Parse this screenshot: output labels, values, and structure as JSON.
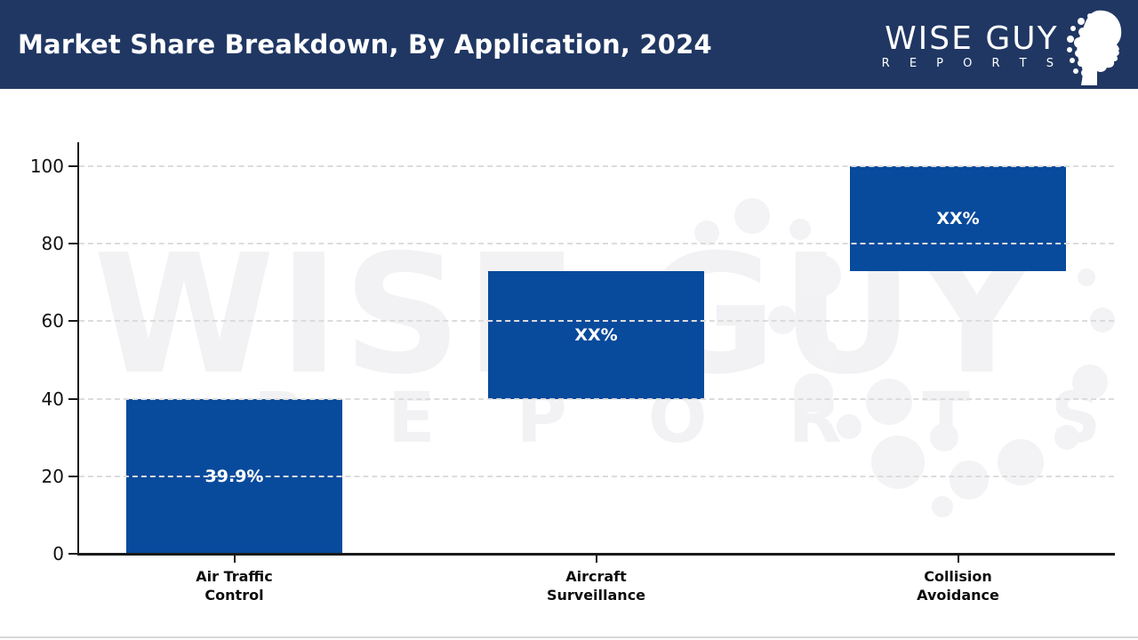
{
  "header": {
    "title": "Market Share Breakdown, By Application, 2024",
    "logo": {
      "line1": "WISE GUY",
      "line2": "R E P O R T S"
    }
  },
  "watermark": {
    "line1": "WISE GUY",
    "line2": "R E P O R T S"
  },
  "chart_data": {
    "type": "bar",
    "variant": "floating-segment-breakdown",
    "title": "Market Share Breakdown, By Application, 2024",
    "categories": [
      "Air Traffic Control",
      "Aircraft Surveillance",
      "Collision Avoidance"
    ],
    "category_lines": [
      [
        "Air Traffic",
        "Control"
      ],
      [
        "Aircraft",
        "Surveillance"
      ],
      [
        "Collision",
        "Avoidance"
      ]
    ],
    "segments": [
      {
        "category": "Air Traffic Control",
        "from": 0,
        "to": 40,
        "label": "39.9%"
      },
      {
        "category": "Aircraft Surveillance",
        "from": 40,
        "to": 73,
        "label": "XX%"
      },
      {
        "category": "Collision Avoidance",
        "from": 73,
        "to": 100,
        "label": "XX%"
      }
    ],
    "xlabel": "",
    "ylabel": "",
    "ylim": [
      0,
      100
    ],
    "yticks": [
      0,
      20,
      40,
      60,
      80,
      100
    ],
    "grid": true,
    "grid_style": "dashed",
    "legend": "none",
    "colors": {
      "bar": "#084a9c",
      "bar_label": "#ffffff",
      "header_bg": "#203763",
      "axis": "#1a1a1a",
      "gridline": "#dcdcdc",
      "watermark": "#f2f2f4"
    }
  }
}
